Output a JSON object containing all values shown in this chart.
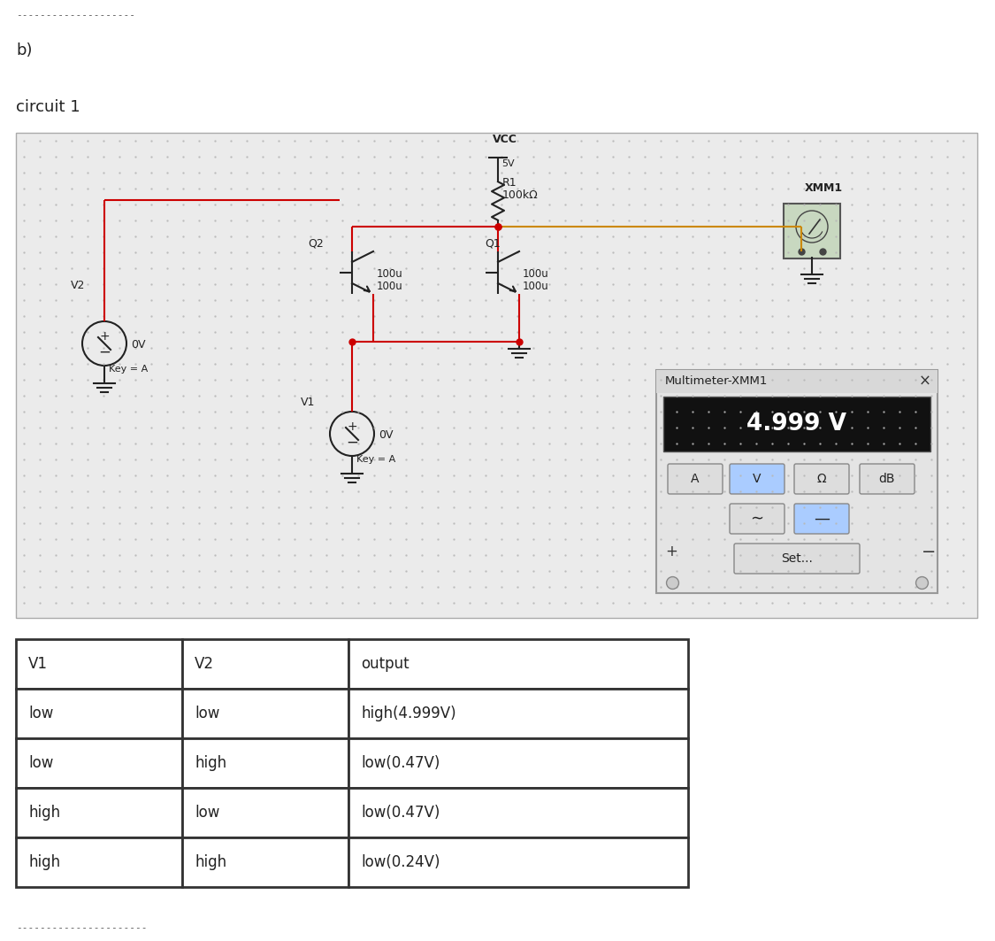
{
  "title_dashes_top": "--------------------",
  "label_b": "b)",
  "label_circuit": "circuit 1",
  "title_dashes_bottom": "----------------------",
  "bg_color": "#ffffff",
  "wire_red": "#cc0000",
  "wire_orange": "#cc8800",
  "vcc_label": "VCC",
  "r1_label": "R1",
  "r1_val": "100kΩ",
  "vcc_val": "5V",
  "q1_label": "Q1",
  "q2_label": "Q2",
  "xmm1_label": "XMM1",
  "v1_label": "V1",
  "v2_label": "V2",
  "cap_q2_1": "100u",
  "cap_q2_2": "100u",
  "cap_q1_1": "100u",
  "cap_q1_2": "100u",
  "key_a1": "Key = A",
  "key_a2": "Key = A",
  "ov1": "0V",
  "ov2": "0V",
  "mm_title": "Multimeter-XMM1",
  "mm_display": "4.999 V",
  "mm_btn_A": "A",
  "mm_btn_V": "V",
  "mm_btn_ohm": "Ω",
  "mm_btn_dB": "dB",
  "mm_set": "Set...",
  "table_headers": [
    "V1",
    "V2",
    "output"
  ],
  "table_rows": [
    [
      "low",
      "low",
      "high(4.999V)"
    ],
    [
      "low",
      "high",
      "low(0.47V)"
    ],
    [
      "high",
      "low",
      "low(0.47V)"
    ],
    [
      "high",
      "high",
      "low(0.24V)"
    ]
  ],
  "fig_width": 11.25,
  "fig_height": 10.63
}
